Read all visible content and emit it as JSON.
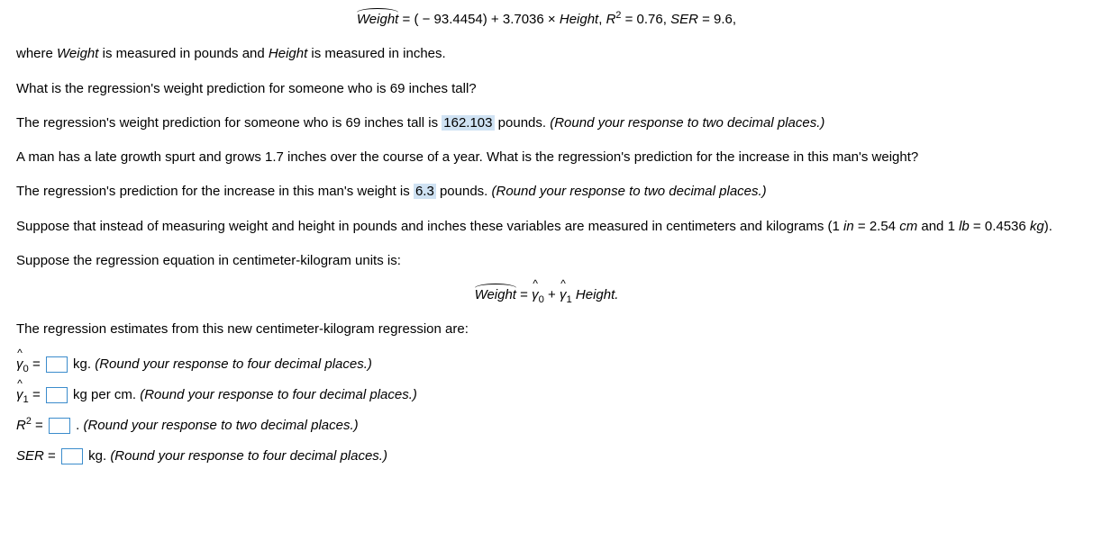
{
  "equation1": {
    "weight_label": "Weight",
    "intercept": "− 93.4454",
    "slope": "3.7036",
    "height_label": "Height",
    "r_label": "R",
    "r2_value": "0.76",
    "ser_label": "SER",
    "ser_value": "9.6"
  },
  "para1": {
    "prefix": "where ",
    "weight": "Weight",
    "mid1": " is measured in pounds and ",
    "height": "Height",
    "suffix": " is measured in inches."
  },
  "q1": "What is the regression's weight prediction for someone who is 69 inches tall?",
  "a1": {
    "prefix": "The regression's weight prediction for someone who is 69 inches tall is ",
    "value": "162.103",
    "unit": " pounds. ",
    "hint": "(Round your response to two decimal places.)"
  },
  "q2": "A man has a late growth spurt and grows 1.7 inches over the course of a year. What is the regression's prediction for the increase in this man's weight?",
  "a2": {
    "prefix": "The regression's prediction for the increase in this man's weight is ",
    "value": "6.3",
    "unit": " pounds. ",
    "hint": "(Round your response to two decimal places.)"
  },
  "para_conv": {
    "prefix": "Suppose that instead of measuring weight and height in pounds and inches these variables are measured in centimeters and kilograms (1 ",
    "in": "in",
    "mid1": " = 2.54 ",
    "cm": "cm",
    "mid2": " and 1 ",
    "lb": "lb",
    "mid3": " = 0.4536 ",
    "kg": "kg",
    "suffix": ")."
  },
  "para_eq2_intro": "Suppose the regression equation in centimeter-kilogram units is:",
  "equation2": {
    "weight_label": "Weight",
    "gamma": "γ",
    "sub0": "0",
    "sub1": "1",
    "height_label": "Height."
  },
  "para_estimates": "The regression estimates from this new centimeter-kilogram regression are:",
  "est_gamma0": {
    "gamma": "γ",
    "sub": "0",
    "unit": " kg. ",
    "hint": "(Round your response to four decimal places.)"
  },
  "est_gamma1": {
    "gamma": "γ",
    "sub": "1",
    "unit": " kg per cm. ",
    "hint": "(Round your response to four decimal places.)"
  },
  "est_r2": {
    "r_label": "R",
    "suffix": ". ",
    "hint": "(Round your response to two decimal places.)"
  },
  "est_ser": {
    "label": "SER",
    "unit": " kg. ",
    "hint": "(Round your response to four decimal places.)"
  }
}
